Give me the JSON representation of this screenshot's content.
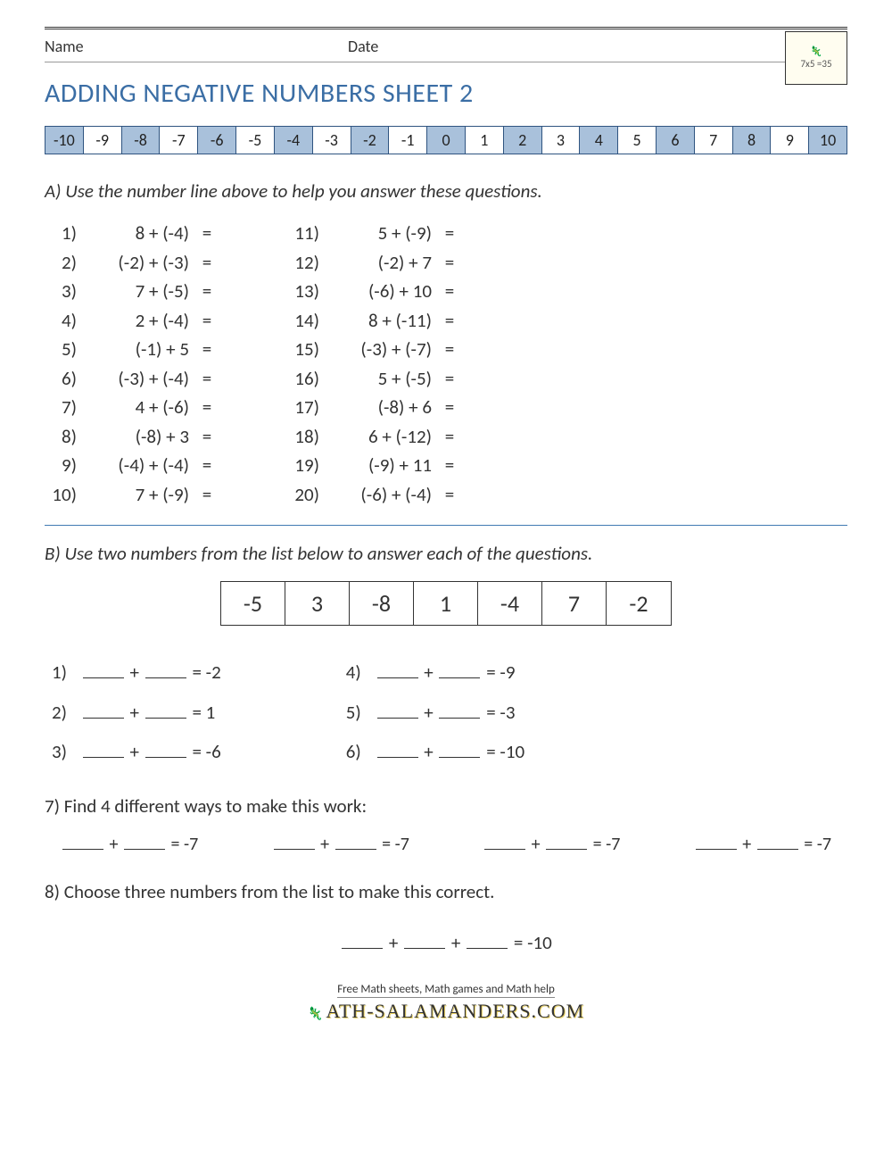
{
  "colors": {
    "title": "#3b6ea5",
    "nl_blue_bg": "#a9c1db",
    "nl_border": "#2f5480",
    "divider": "#417ab3",
    "text": "#333333",
    "page_bg": "#ffffff"
  },
  "header": {
    "name_label": "Name",
    "date_label": "Date",
    "logo_text": "7x5\n=35"
  },
  "title": "ADDING NEGATIVE NUMBERS SHEET 2",
  "number_line": {
    "cells": [
      {
        "v": "-10",
        "blue": true
      },
      {
        "v": "-9",
        "blue": false
      },
      {
        "v": "-8",
        "blue": true
      },
      {
        "v": "-7",
        "blue": false
      },
      {
        "v": "-6",
        "blue": true
      },
      {
        "v": "-5",
        "blue": false
      },
      {
        "v": "-4",
        "blue": true
      },
      {
        "v": "-3",
        "blue": false
      },
      {
        "v": "-2",
        "blue": true
      },
      {
        "v": "-1",
        "blue": false
      },
      {
        "v": "0",
        "blue": true
      },
      {
        "v": "1",
        "blue": false
      },
      {
        "v": "2",
        "blue": true
      },
      {
        "v": "3",
        "blue": false
      },
      {
        "v": "4",
        "blue": true
      },
      {
        "v": "5",
        "blue": false
      },
      {
        "v": "6",
        "blue": true
      },
      {
        "v": "7",
        "blue": false
      },
      {
        "v": "8",
        "blue": true
      },
      {
        "v": "9",
        "blue": false
      },
      {
        "v": "10",
        "blue": true
      }
    ]
  },
  "section_a": {
    "instruction": "A) Use the number line above to help you answer these questions.",
    "left": [
      {
        "n": "1)",
        "expr": "8 + (-4)"
      },
      {
        "n": "2)",
        "expr": "(-2) + (-3)"
      },
      {
        "n": "3)",
        "expr": "7 + (-5)"
      },
      {
        "n": "4)",
        "expr": "2 + (-4)"
      },
      {
        "n": "5)",
        "expr": "(-1) + 5"
      },
      {
        "n": "6)",
        "expr": "(-3) + (-4)"
      },
      {
        "n": "7)",
        "expr": "4 + (-6)"
      },
      {
        "n": "8)",
        "expr": "(-8) + 3"
      },
      {
        "n": "9)",
        "expr": "(-4) + (-4)"
      },
      {
        "n": "10)",
        "expr": "7 + (-9)"
      }
    ],
    "right": [
      {
        "n": "11)",
        "expr": "5 + (-9)"
      },
      {
        "n": "12)",
        "expr": "(-2) + 7"
      },
      {
        "n": "13)",
        "expr": "(-6) + 10"
      },
      {
        "n": "14)",
        "expr": "8 + (-11)"
      },
      {
        "n": "15)",
        "expr": "(-3) + (-7)"
      },
      {
        "n": "16)",
        "expr": "5 + (-5)"
      },
      {
        "n": "17)",
        "expr": "(-8) + 6"
      },
      {
        "n": "18)",
        "expr": "6 + (-12)"
      },
      {
        "n": "19)",
        "expr": "(-9) + 11"
      },
      {
        "n": "20)",
        "expr": "(-6) + (-4)"
      }
    ],
    "eq": "="
  },
  "section_b": {
    "instruction": "B) Use two numbers from the list below to answer each of the questions.",
    "numbers": [
      "-5",
      "3",
      "-8",
      "1",
      "-4",
      "7",
      "-2"
    ],
    "left": [
      {
        "n": "1)",
        "rhs": "= -2"
      },
      {
        "n": "2)",
        "rhs": "= 1"
      },
      {
        "n": "3)",
        "rhs": "= -6"
      }
    ],
    "right": [
      {
        "n": "4)",
        "rhs": "= -9"
      },
      {
        "n": "5)",
        "rhs": "= -3"
      },
      {
        "n": "6)",
        "rhs": "= -10"
      }
    ],
    "q7": "7) Find 4 different ways to make this work:",
    "q7_rhs": "= -7",
    "q8": "8) Choose three numbers from the list to make this correct.",
    "q8_rhs": "= -10",
    "plus": "+"
  },
  "footer": {
    "tagline": "Free Math sheets, Math games and Math help",
    "brand": "ATH-SALAMANDERS.COM"
  }
}
